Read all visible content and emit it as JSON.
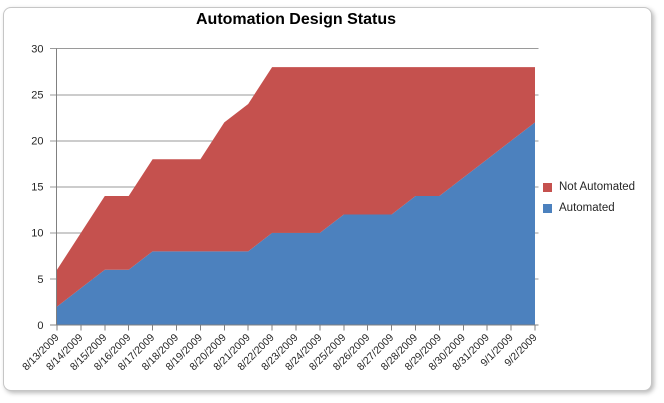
{
  "chart_data": {
    "type": "area",
    "stacked": true,
    "title": "Automation Design Status",
    "categories": [
      "8/13/2009",
      "8/14/2009",
      "8/15/2009",
      "8/16/2009",
      "8/17/2009",
      "8/18/2009",
      "8/19/2009",
      "8/20/2009",
      "8/21/2009",
      "8/22/2009",
      "8/23/2009",
      "8/24/2009",
      "8/25/2009",
      "8/26/2009",
      "8/27/2009",
      "8/28/2009",
      "8/29/2009",
      "8/30/2009",
      "8/31/2009",
      "9/1/2009",
      "9/2/2009"
    ],
    "series": [
      {
        "name": "Automated",
        "color": "#4C81BE",
        "values": [
          2,
          4,
          6,
          6,
          8,
          8,
          8,
          8,
          8,
          10,
          10,
          10,
          12,
          12,
          12,
          14,
          14,
          16,
          18,
          20,
          22
        ]
      },
      {
        "name": "Not Automated",
        "color": "#C5514E",
        "values": [
          4,
          6,
          8,
          8,
          10,
          10,
          10,
          14,
          16,
          18,
          18,
          18,
          16,
          16,
          16,
          14,
          14,
          12,
          10,
          8,
          6
        ]
      }
    ],
    "totals": [
      6,
      10,
      14,
      14,
      18,
      18,
      18,
      22,
      24,
      28,
      28,
      28,
      28,
      28,
      28,
      28,
      28,
      28,
      28,
      28,
      28
    ],
    "xlabel": "",
    "ylabel": "",
    "ylim": [
      0,
      30
    ],
    "ytick_step": 5,
    "ytick_labels": [
      "0",
      "5",
      "10",
      "15",
      "20",
      "25",
      "30"
    ],
    "grid": true,
    "legend_position": "right",
    "legend_order": [
      "Not Automated",
      "Automated"
    ],
    "colors": {
      "gridline": "#9a9a9a",
      "axis": "#808080",
      "tick_label": "#262626",
      "title": "#000000"
    }
  }
}
